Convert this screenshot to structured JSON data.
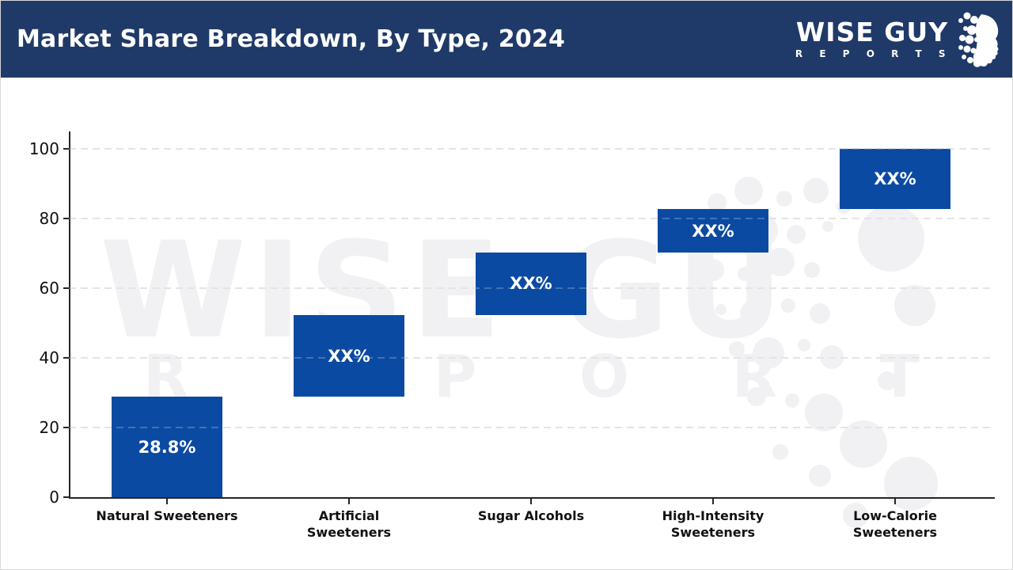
{
  "header": {
    "title": "Market Share Breakdown, By Type, 2024",
    "logo": {
      "line1": "WISE GUY",
      "line2": "R E P O R T S"
    }
  },
  "watermark": {
    "line1": "WISE GU",
    "line2": "R E P O R T S"
  },
  "chart_data": {
    "type": "bar",
    "subtype": "waterfall",
    "title": "Market Share Breakdown, By Type, 2024",
    "categories": [
      "Natural Sweeteners",
      "Artificial\nSweeteners",
      "Sugar Alcohols",
      "High-Intensity\nSweeteners",
      "Low-Calorie\nSweeteners"
    ],
    "segments": [
      {
        "start": 0,
        "end": 28.8,
        "label": "28.8%"
      },
      {
        "start": 28.8,
        "end": 52.3,
        "label": "XX%"
      },
      {
        "start": 52.3,
        "end": 70.2,
        "label": "XX%"
      },
      {
        "start": 70.2,
        "end": 82.7,
        "label": "XX%"
      },
      {
        "start": 82.7,
        "end": 100,
        "label": "XX%"
      }
    ],
    "ylim": [
      0,
      100
    ],
    "yticks": [
      0,
      20,
      40,
      60,
      80,
      100
    ],
    "grid": "horizontal-dashed",
    "legend": "none",
    "bar_color": "#0b4aa2",
    "bar_label_color": "#ffffff",
    "xlabel": "",
    "ylabel": ""
  },
  "colors": {
    "header_bg": "#1f3a68",
    "bar": "#0b4aa2",
    "gridline": "#dcdcdc",
    "axis": "#262626",
    "watermark": "#f1f1f4"
  }
}
